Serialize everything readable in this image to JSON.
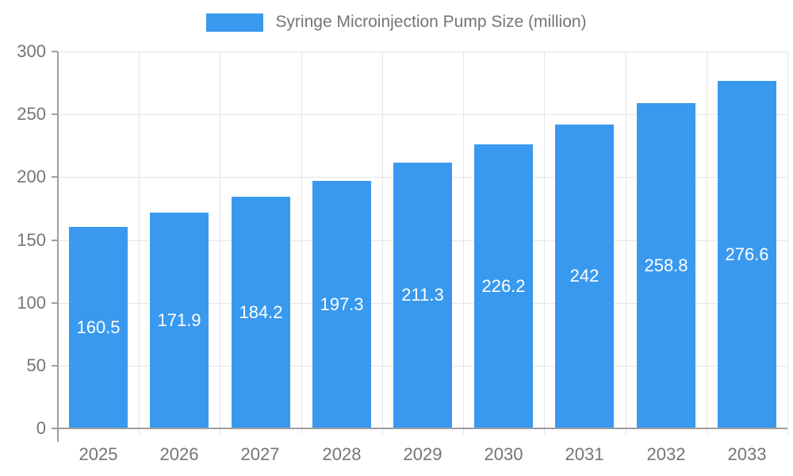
{
  "legend": {
    "items": [
      {
        "label": "Syringe Microinjection Pump Size (million)",
        "color": "#3999ee"
      }
    ]
  },
  "chart_data": {
    "type": "bar",
    "title": "Syringe Microinjection Pump Size (million)",
    "categories": [
      "2025",
      "2026",
      "2027",
      "2028",
      "2029",
      "2030",
      "2031",
      "2032",
      "2033"
    ],
    "series": [
      {
        "name": "Syringe Microinjection Pump Size (million)",
        "values": [
          160.5,
          171.9,
          184.2,
          197.3,
          211.3,
          226.2,
          242,
          258.8,
          276.6
        ],
        "labels": [
          "160.5",
          "171.9",
          "184.2",
          "197.3",
          "211.3",
          "226.2",
          "242",
          "258.8",
          "276.6"
        ]
      }
    ],
    "xlabel": "",
    "ylabel": "",
    "ylim": [
      0,
      300
    ],
    "yticks": [
      0,
      50,
      100,
      150,
      200,
      250,
      300
    ],
    "grid": true,
    "legend_position": "top",
    "colors": {
      "bar": "#3999ee",
      "bar_value_label": "#ffffff",
      "axis_line": "#9e9e9e",
      "gridline": "#e6e6e6",
      "tick_text": "#757575",
      "background": "#ffffff"
    }
  }
}
